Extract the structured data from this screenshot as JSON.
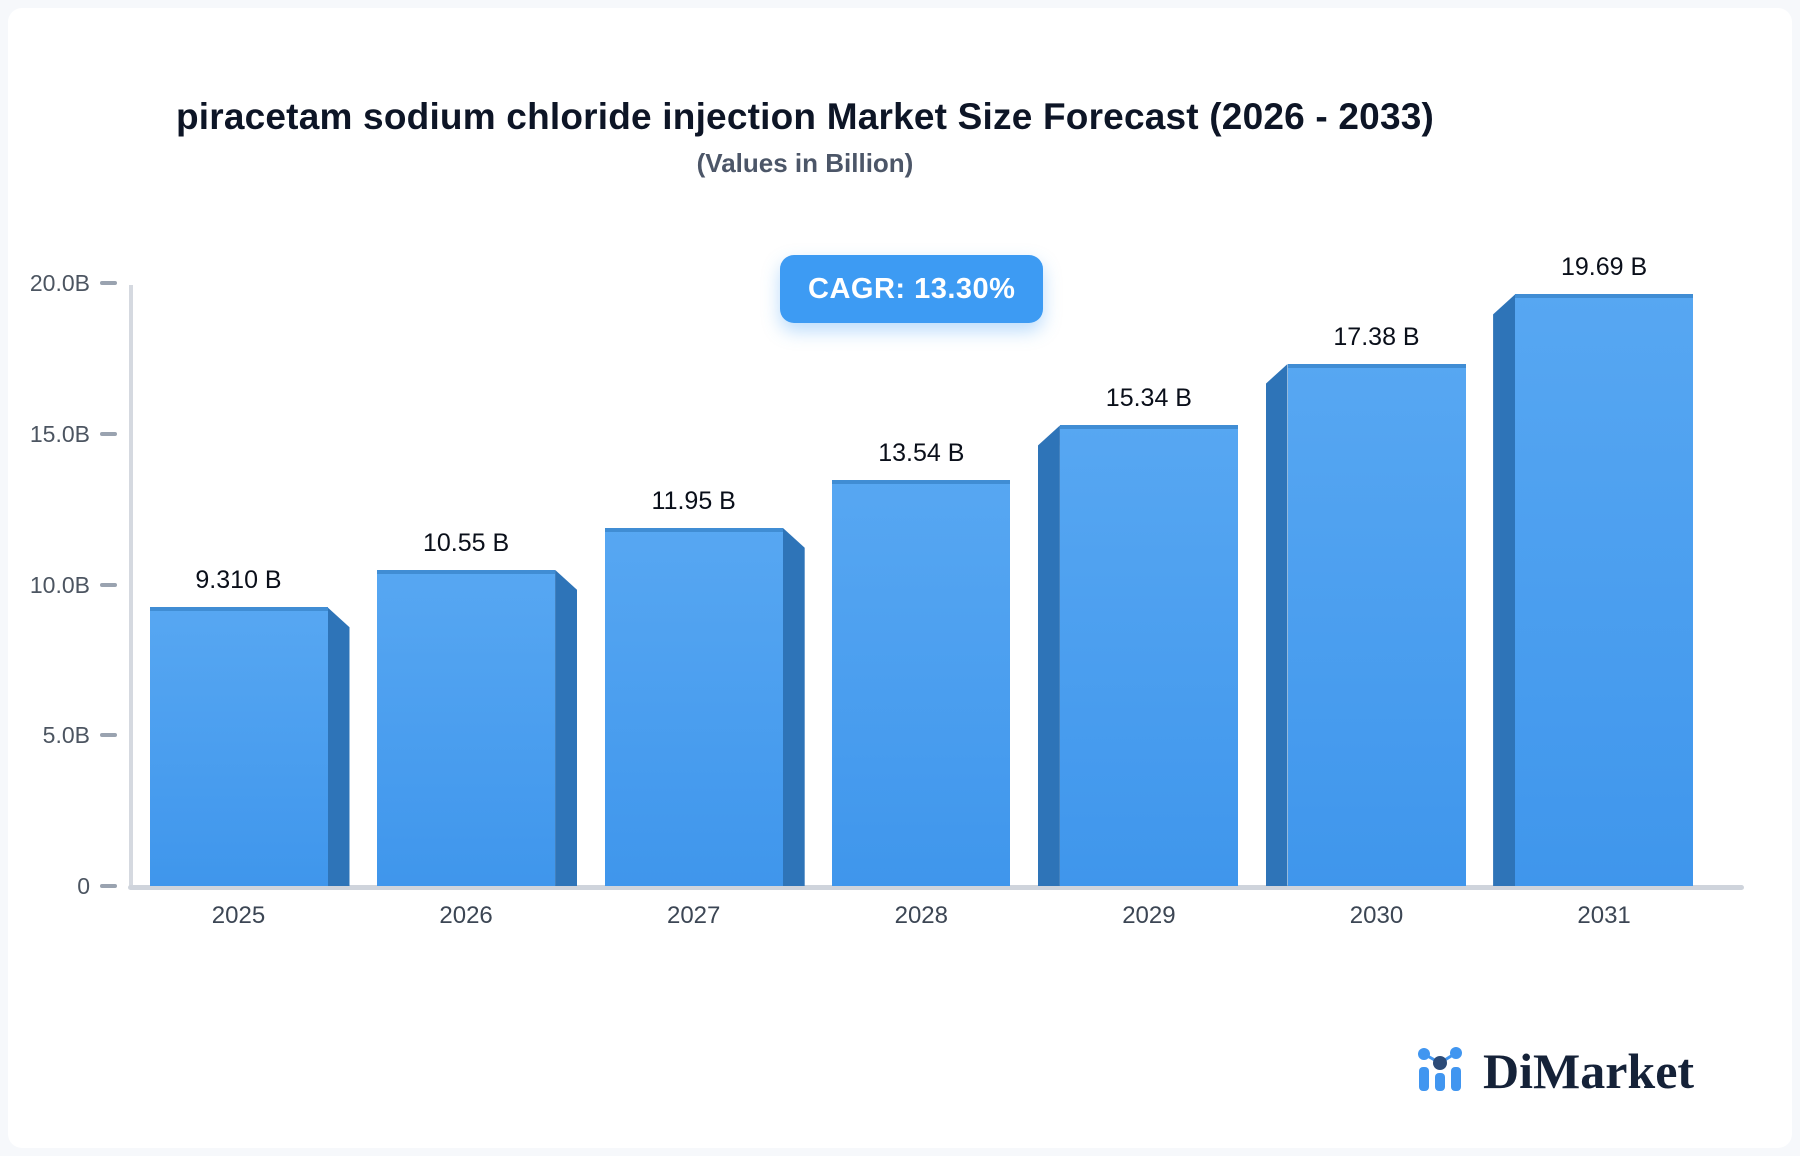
{
  "header": {
    "title": "piracetam sodium chloride injection Market Size Forecast (2026 - 2033)",
    "subtitle": "(Values in Billion)",
    "badge_label": "CAGR: 13.30%",
    "badge_color": "#3d9bf3"
  },
  "chart_data": {
    "type": "bar",
    "title": "piracetam sodium chloride injection Market Size Forecast (2026 - 2033)",
    "subtitle": "(Values in Billion)",
    "categories": [
      "2025",
      "2026",
      "2027",
      "2028",
      "2029",
      "2030",
      "2031"
    ],
    "values": [
      9.31,
      10.55,
      11.95,
      13.54,
      15.34,
      17.38,
      19.69
    ],
    "value_labels": [
      "9.310 B",
      "10.55 B",
      "11.95 B",
      "13.54 B",
      "15.34 B",
      "17.38 B",
      "19.69 B"
    ],
    "xlabel": "",
    "ylabel": "",
    "ylim": [
      0,
      20
    ],
    "yticks": [
      {
        "value": 0,
        "label": "0"
      },
      {
        "value": 5,
        "label": "5.0B"
      },
      {
        "value": 10,
        "label": "10.0B"
      },
      {
        "value": 15,
        "label": "15.0B"
      },
      {
        "value": 20,
        "label": "20.0B"
      }
    ],
    "grid": false,
    "legend": false,
    "bar_color": "#459ced",
    "bar_side_color": "#2e74b8",
    "cagr": "13.30%"
  },
  "logo": {
    "name": "DiMarket",
    "icon": "bar-line-chart-icon",
    "icon_color": "#4196f0",
    "icon_dot_dark": "#2d4b77",
    "text_color": "#152238"
  }
}
